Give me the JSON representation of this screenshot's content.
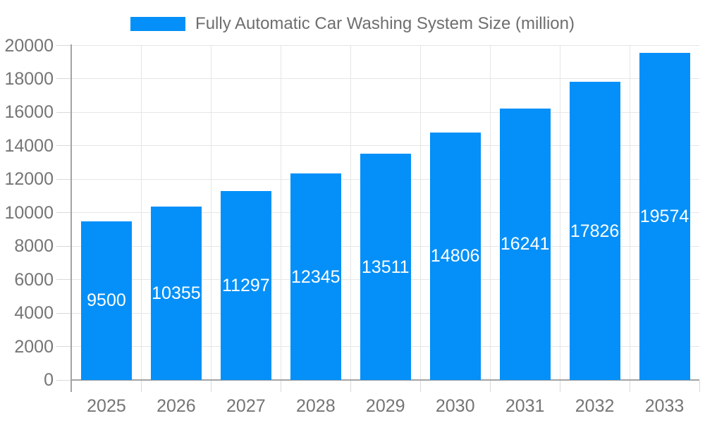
{
  "legend": {
    "label": "Fully Automatic Car Washing System Size (million)"
  },
  "chart_data": {
    "type": "bar",
    "title": "Fully Automatic Car Washing System Size (million)",
    "series_name": "Fully Automatic Car Washing System Size (million)",
    "categories": [
      "2025",
      "2026",
      "2027",
      "2028",
      "2029",
      "2030",
      "2031",
      "2032",
      "2033"
    ],
    "values": [
      9500,
      10355,
      11297,
      12345,
      13511,
      14806,
      16241,
      17826,
      19574
    ],
    "value_labels": [
      "9500",
      "10355",
      "11297",
      "12345",
      "13511",
      "14806",
      "16241",
      "17826",
      "19574"
    ],
    "xlabel": "",
    "ylabel": "",
    "ylim": [
      0,
      20000
    ],
    "yticks": [
      0,
      2000,
      4000,
      6000,
      8000,
      10000,
      12000,
      14000,
      16000,
      18000,
      20000
    ],
    "ytick_labels": [
      "0",
      "2000",
      "4000",
      "6000",
      "8000",
      "10000",
      "12000",
      "14000",
      "16000",
      "18000",
      "20000"
    ],
    "grid": "horizontal lines at each y tick plus vertical lines at category boundaries",
    "legend_position": "top-center",
    "value_label_position": "inside bar, horizontally and vertically centered",
    "colors": {
      "bar": "#0490f8",
      "grid": "#e6e6e6",
      "tick": "#d9d9d9",
      "axis_line": "#a3a3a3",
      "axis_text": "#757575",
      "legend_text": "#6e6e6e",
      "value_label": "#ffffff",
      "background": "#ffffff"
    }
  }
}
